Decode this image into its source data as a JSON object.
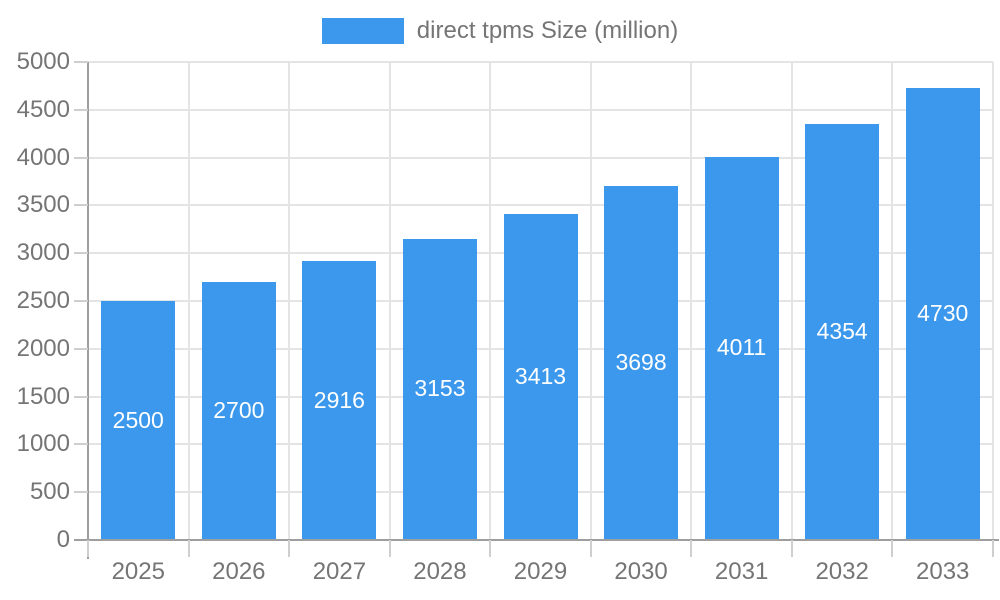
{
  "chart_data": {
    "type": "bar",
    "title": "direct tpms Size (million)",
    "legend": {
      "label": "direct tpms Size (million)",
      "position": "top-center"
    },
    "categories": [
      "2025",
      "2026",
      "2027",
      "2028",
      "2029",
      "2030",
      "2031",
      "2032",
      "2033"
    ],
    "values": [
      2500,
      2700,
      2916,
      3153,
      3413,
      3698,
      4011,
      4354,
      4730
    ],
    "xlabel": "",
    "ylabel": "",
    "ylim": [
      0,
      5000
    ],
    "yticks": [
      0,
      500,
      1000,
      1500,
      2000,
      2500,
      3000,
      3500,
      4000,
      4500,
      5000
    ],
    "grid": true,
    "value_labels_shown": true,
    "colors": {
      "bar": "#3b98ec",
      "axis": "#9e9e9e",
      "gridline": "#e4e4e4",
      "tick": "#cfcfcf",
      "label_text": "#757575",
      "value_label": "#ffffff",
      "background": "#ffffff"
    }
  }
}
